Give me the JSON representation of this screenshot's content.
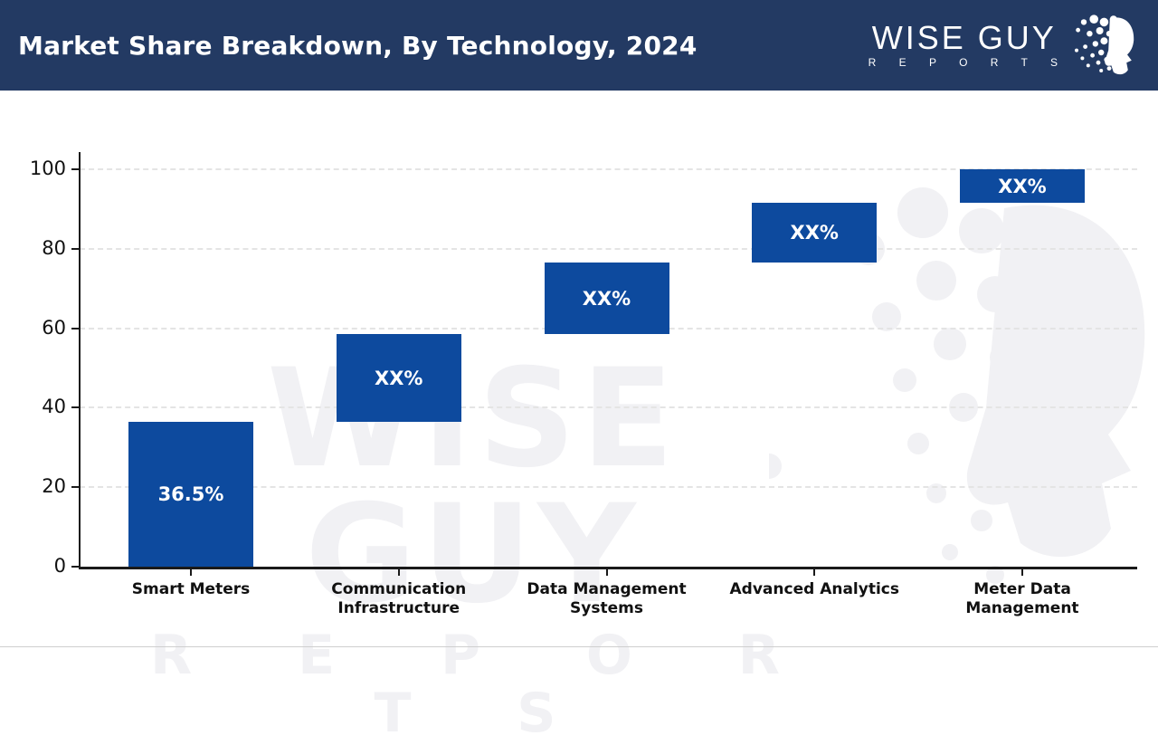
{
  "header": {
    "title": "Market Share Breakdown, By Technology, 2024",
    "logo": {
      "line1": "WISE GUY",
      "line2": "R E P O R T S"
    }
  },
  "watermark": {
    "line1": "WISE GUY",
    "line2": "R E P O R T S"
  },
  "colors": {
    "header_bg": "#233a63",
    "bar": "#0d4a9e",
    "bar_label": "#ffffff",
    "axis": "#1a1a1a",
    "gridline": "#e4e4e4",
    "watermark": "#f1f1f4",
    "page_bg": "#ffffff"
  },
  "chart_data": {
    "type": "bar",
    "subtype": "waterfall",
    "title": "Market Share Breakdown, By Technology, 2024",
    "xlabel": "",
    "ylabel": "",
    "categories": [
      "Smart Meters",
      "Communication Infrastructure",
      "Data Management Systems",
      "Advanced Analytics",
      "Meter Data Management"
    ],
    "category_display_lines": [
      [
        "Smart Meters"
      ],
      [
        "Communication",
        "Infrastructure"
      ],
      [
        "Data Management",
        "Systems"
      ],
      [
        "Advanced Analytics"
      ],
      [
        "Meter Data",
        "Management"
      ]
    ],
    "series": [
      {
        "name": "Market Share",
        "segments": [
          {
            "category": "Smart Meters",
            "start": 0,
            "end": 36.5,
            "value": 36.5,
            "label": "36.5%"
          },
          {
            "category": "Communication Infrastructure",
            "start": 36.5,
            "end": 58.5,
            "value": 22,
            "label": "XX%"
          },
          {
            "category": "Data Management Systems",
            "start": 58.5,
            "end": 76.5,
            "value": 18,
            "label": "XX%"
          },
          {
            "category": "Advanced Analytics",
            "start": 76.5,
            "end": 91.5,
            "value": 15,
            "label": "XX%"
          },
          {
            "category": "Meter Data Management",
            "start": 91.5,
            "end": 100,
            "value": 8.5,
            "label": "XX%"
          }
        ]
      }
    ],
    "yticks": [
      0,
      20,
      40,
      60,
      80,
      100
    ],
    "ylim": [
      0,
      105
    ],
    "grid": "horizontal-dashed",
    "legend": "none",
    "bar_color": "#0d4a9e",
    "bar_label_color": "#ffffff"
  }
}
